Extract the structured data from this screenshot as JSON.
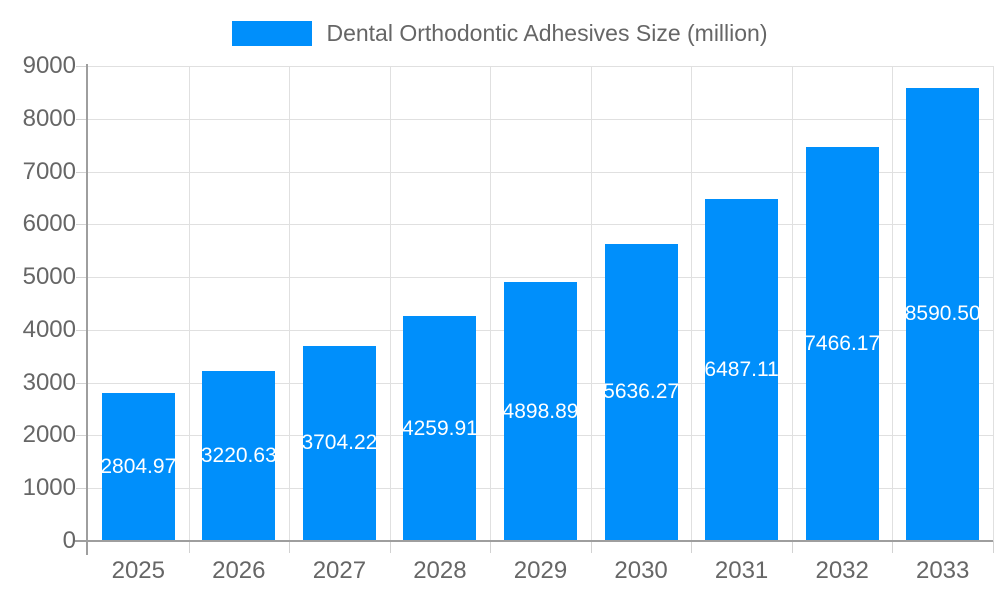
{
  "chart_data": {
    "type": "bar",
    "title": "Dental Orthodontic Adhesives Size (million)",
    "categories": [
      "2025",
      "2026",
      "2027",
      "2028",
      "2029",
      "2030",
      "2031",
      "2032",
      "2033"
    ],
    "values": [
      2804.97,
      3220.63,
      3704.22,
      4259.91,
      4898.89,
      5636.27,
      6487.11,
      7466.17,
      8590.5
    ],
    "bar_labels": [
      "2804.97",
      "3220.63",
      "3704.22",
      "4259.91",
      "4898.89",
      "5636.27",
      "6487.11",
      "7466.17",
      "8590.50"
    ],
    "xlabel": "",
    "ylabel": "",
    "ylim": [
      0,
      9000
    ],
    "y_ticks": [
      0,
      1000,
      2000,
      3000,
      4000,
      5000,
      6000,
      7000,
      8000,
      9000
    ],
    "grid": true,
    "legend_position": "top",
    "colors": {
      "bar": "#008FFB",
      "bar_label_text": "#ffffff",
      "axis_text": "#666666",
      "legend_text": "#666666",
      "gridline": "#e0e0e0",
      "axis_line": "#9e9e9e"
    }
  }
}
